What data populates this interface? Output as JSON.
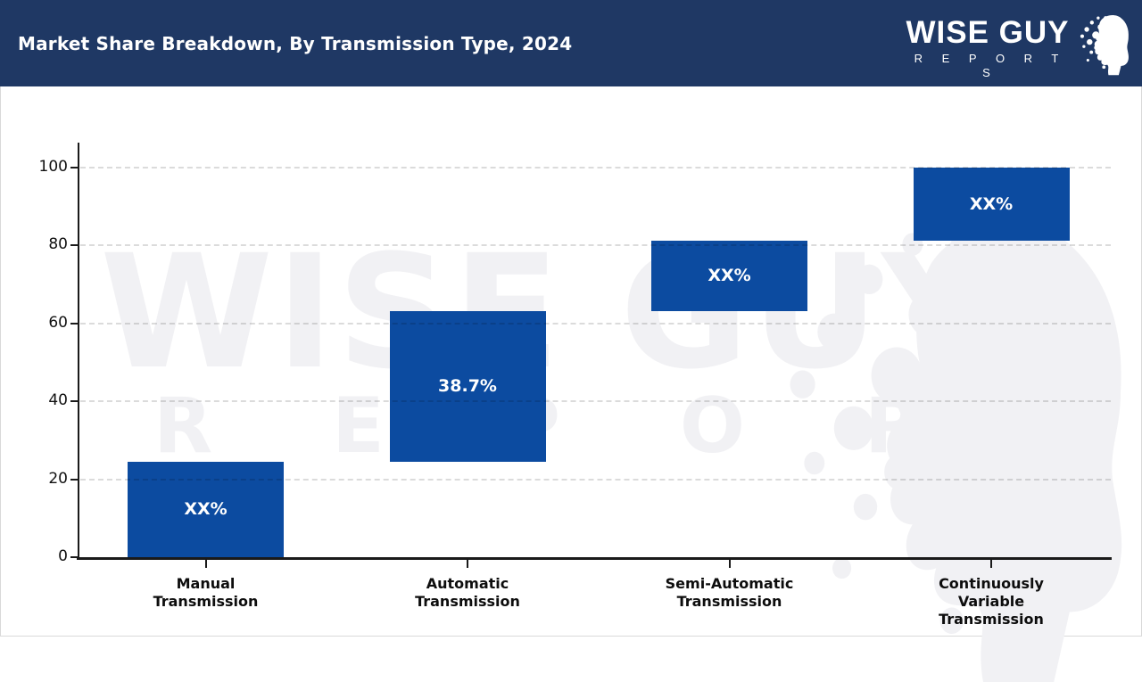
{
  "header": {
    "title": "Market Share Breakdown, By Transmission Type, 2024",
    "bg_color": "#1f3864",
    "logo": {
      "line1": "WISE GUY",
      "line2": "R E P O R T S"
    }
  },
  "watermark": {
    "line1": "WISE GUY",
    "line2": "R E P O R T S"
  },
  "chart_data": {
    "type": "bar",
    "subtype": "waterfall",
    "title": "Market Share Breakdown, By Transmission Type, 2024",
    "xlabel": "",
    "ylabel": "",
    "ylim": [
      0,
      106
    ],
    "grid": true,
    "grid_style": "dashed",
    "legend": "none",
    "bar_color": "#0c4ba0",
    "value_label_color": "#ffffff",
    "categories": [
      "Manual\nTransmission",
      "Automatic\nTransmission",
      "Semi-Automatic\nTransmission",
      "Continuously\nVariable\nTransmission"
    ],
    "yticks": [
      0,
      20,
      40,
      60,
      80,
      100
    ],
    "segments": [
      {
        "start": 0,
        "end": 24.5,
        "value": 24.5,
        "label": "XX%"
      },
      {
        "start": 24.5,
        "end": 63.2,
        "value": 38.7,
        "label": "38.7%"
      },
      {
        "start": 63.2,
        "end": 81.2,
        "value": 18.0,
        "label": "XX%"
      },
      {
        "start": 81.2,
        "end": 100,
        "value": 18.8,
        "label": "XX%"
      }
    ]
  }
}
